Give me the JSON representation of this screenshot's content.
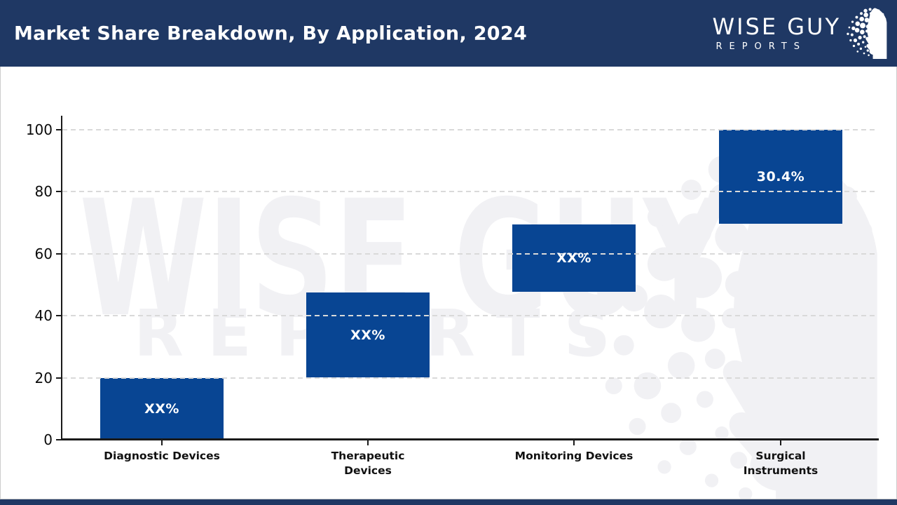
{
  "header": {
    "title": "Market Share Breakdown, By Application, 2024",
    "logo": {
      "line1": "WISE GUY",
      "line2": "REPORTS"
    }
  },
  "watermark": {
    "line1": "WISE GUY",
    "line2": "REPORTS"
  },
  "colors": {
    "header_bg": "#1f3864",
    "footer_bg": "#1f3864",
    "bar": "#084593",
    "grid": "#d9d9d9",
    "axis": "#1a1a1a",
    "watermark": "#f1f1f4"
  },
  "chart_data": {
    "type": "bar",
    "subtype": "floating-waterfall",
    "title": "Market Share Breakdown, By Application, 2024",
    "xlabel": "",
    "ylabel": "",
    "ylim": [
      0,
      104.5
    ],
    "yticks": [
      0,
      20,
      40,
      60,
      80,
      100
    ],
    "grid": "horizontal-dashed",
    "legend": "none",
    "categories": [
      "Diagnostic Devices",
      "Therapeutic Devices",
      "Monitoring Devices",
      "Surgical Instruments"
    ],
    "category_lines": [
      [
        "Diagnostic Devices"
      ],
      [
        "Therapeutic",
        "Devices"
      ],
      [
        "Monitoring Devices"
      ],
      [
        "Surgical",
        "Instruments"
      ]
    ],
    "bars": [
      {
        "label": "XX%",
        "start": 0,
        "end": 19.8
      },
      {
        "label": "XX%",
        "start": 20.1,
        "end": 47.4
      },
      {
        "label": "XX%",
        "start": 47.7,
        "end": 69.4
      },
      {
        "label": "30.4%",
        "start": 69.6,
        "end": 100
      }
    ]
  }
}
